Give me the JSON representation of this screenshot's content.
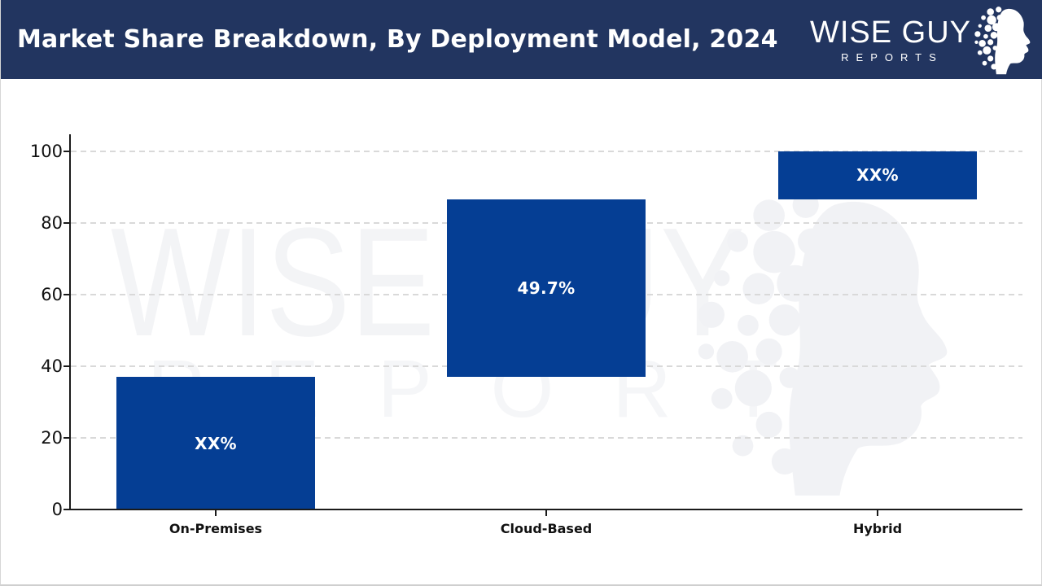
{
  "header": {
    "title": "Market Share Breakdown, By Deployment Model, 2024",
    "brand": {
      "name": "WISE GUY",
      "sub": "REPORTS"
    }
  },
  "watermark": {
    "line1": "WISE GUY",
    "line2": "REPORTS"
  },
  "chart_data": {
    "type": "bar",
    "subtype": "floating-segment-waterfall",
    "title": "Market Share Breakdown, By Deployment Model, 2024",
    "categories": [
      "On-Premises",
      "Cloud-Based",
      "Hybrid"
    ],
    "segments": [
      {
        "category": "On-Premises",
        "start": 0,
        "end": 37,
        "label": "XX%"
      },
      {
        "category": "Cloud-Based",
        "start": 37,
        "end": 86.7,
        "label": "49.7%"
      },
      {
        "category": "Hybrid",
        "start": 86.7,
        "end": 100,
        "label": "XX%"
      }
    ],
    "y_ticks": [
      0,
      20,
      40,
      60,
      80,
      100
    ],
    "ylim": [
      0,
      104.7
    ],
    "xlabel": "",
    "ylabel": "",
    "grid": "horizontal-dashed",
    "legend": "none",
    "bar_color": "#053E94",
    "bar_label_color": "#ffffff",
    "axis_color": "#1a1a1a",
    "gridline_color": "#d9d9d9",
    "header_color": "#223560",
    "watermark_color": "#f3f4f6"
  }
}
